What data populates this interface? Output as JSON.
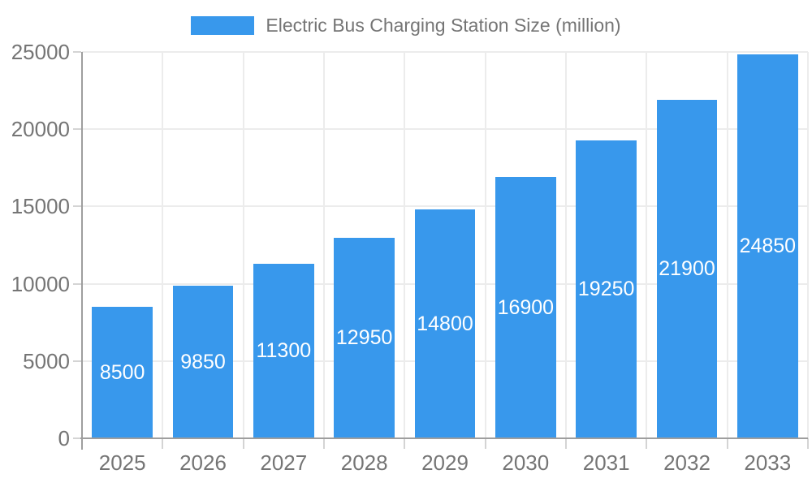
{
  "legend": {
    "series_label": "Electric Bus Charging Station Size (million)"
  },
  "colors": {
    "bar": "#3898EC",
    "bar_value_text": "#FFFFFF",
    "axis_line": "#9E9E9E",
    "tick": "#D4D4D4",
    "gridline": "#ECECEC",
    "axis_text": "#757575",
    "background": "#FFFFFF"
  },
  "chart_data": {
    "type": "bar",
    "title": "Electric Bus Charging Station Size (million)",
    "categories": [
      "2025",
      "2026",
      "2027",
      "2028",
      "2029",
      "2030",
      "2031",
      "2032",
      "2033"
    ],
    "values": [
      8500,
      9850,
      11300,
      12950,
      14800,
      16900,
      19250,
      21900,
      24850
    ],
    "xlabel": "",
    "ylabel": "",
    "ylim": [
      0,
      25000
    ],
    "yticks": [
      0,
      5000,
      10000,
      15000,
      20000,
      25000
    ],
    "grid": true,
    "legend_position": "top-center",
    "value_label_position": "inside-center",
    "bar_width_fraction": 0.75
  }
}
